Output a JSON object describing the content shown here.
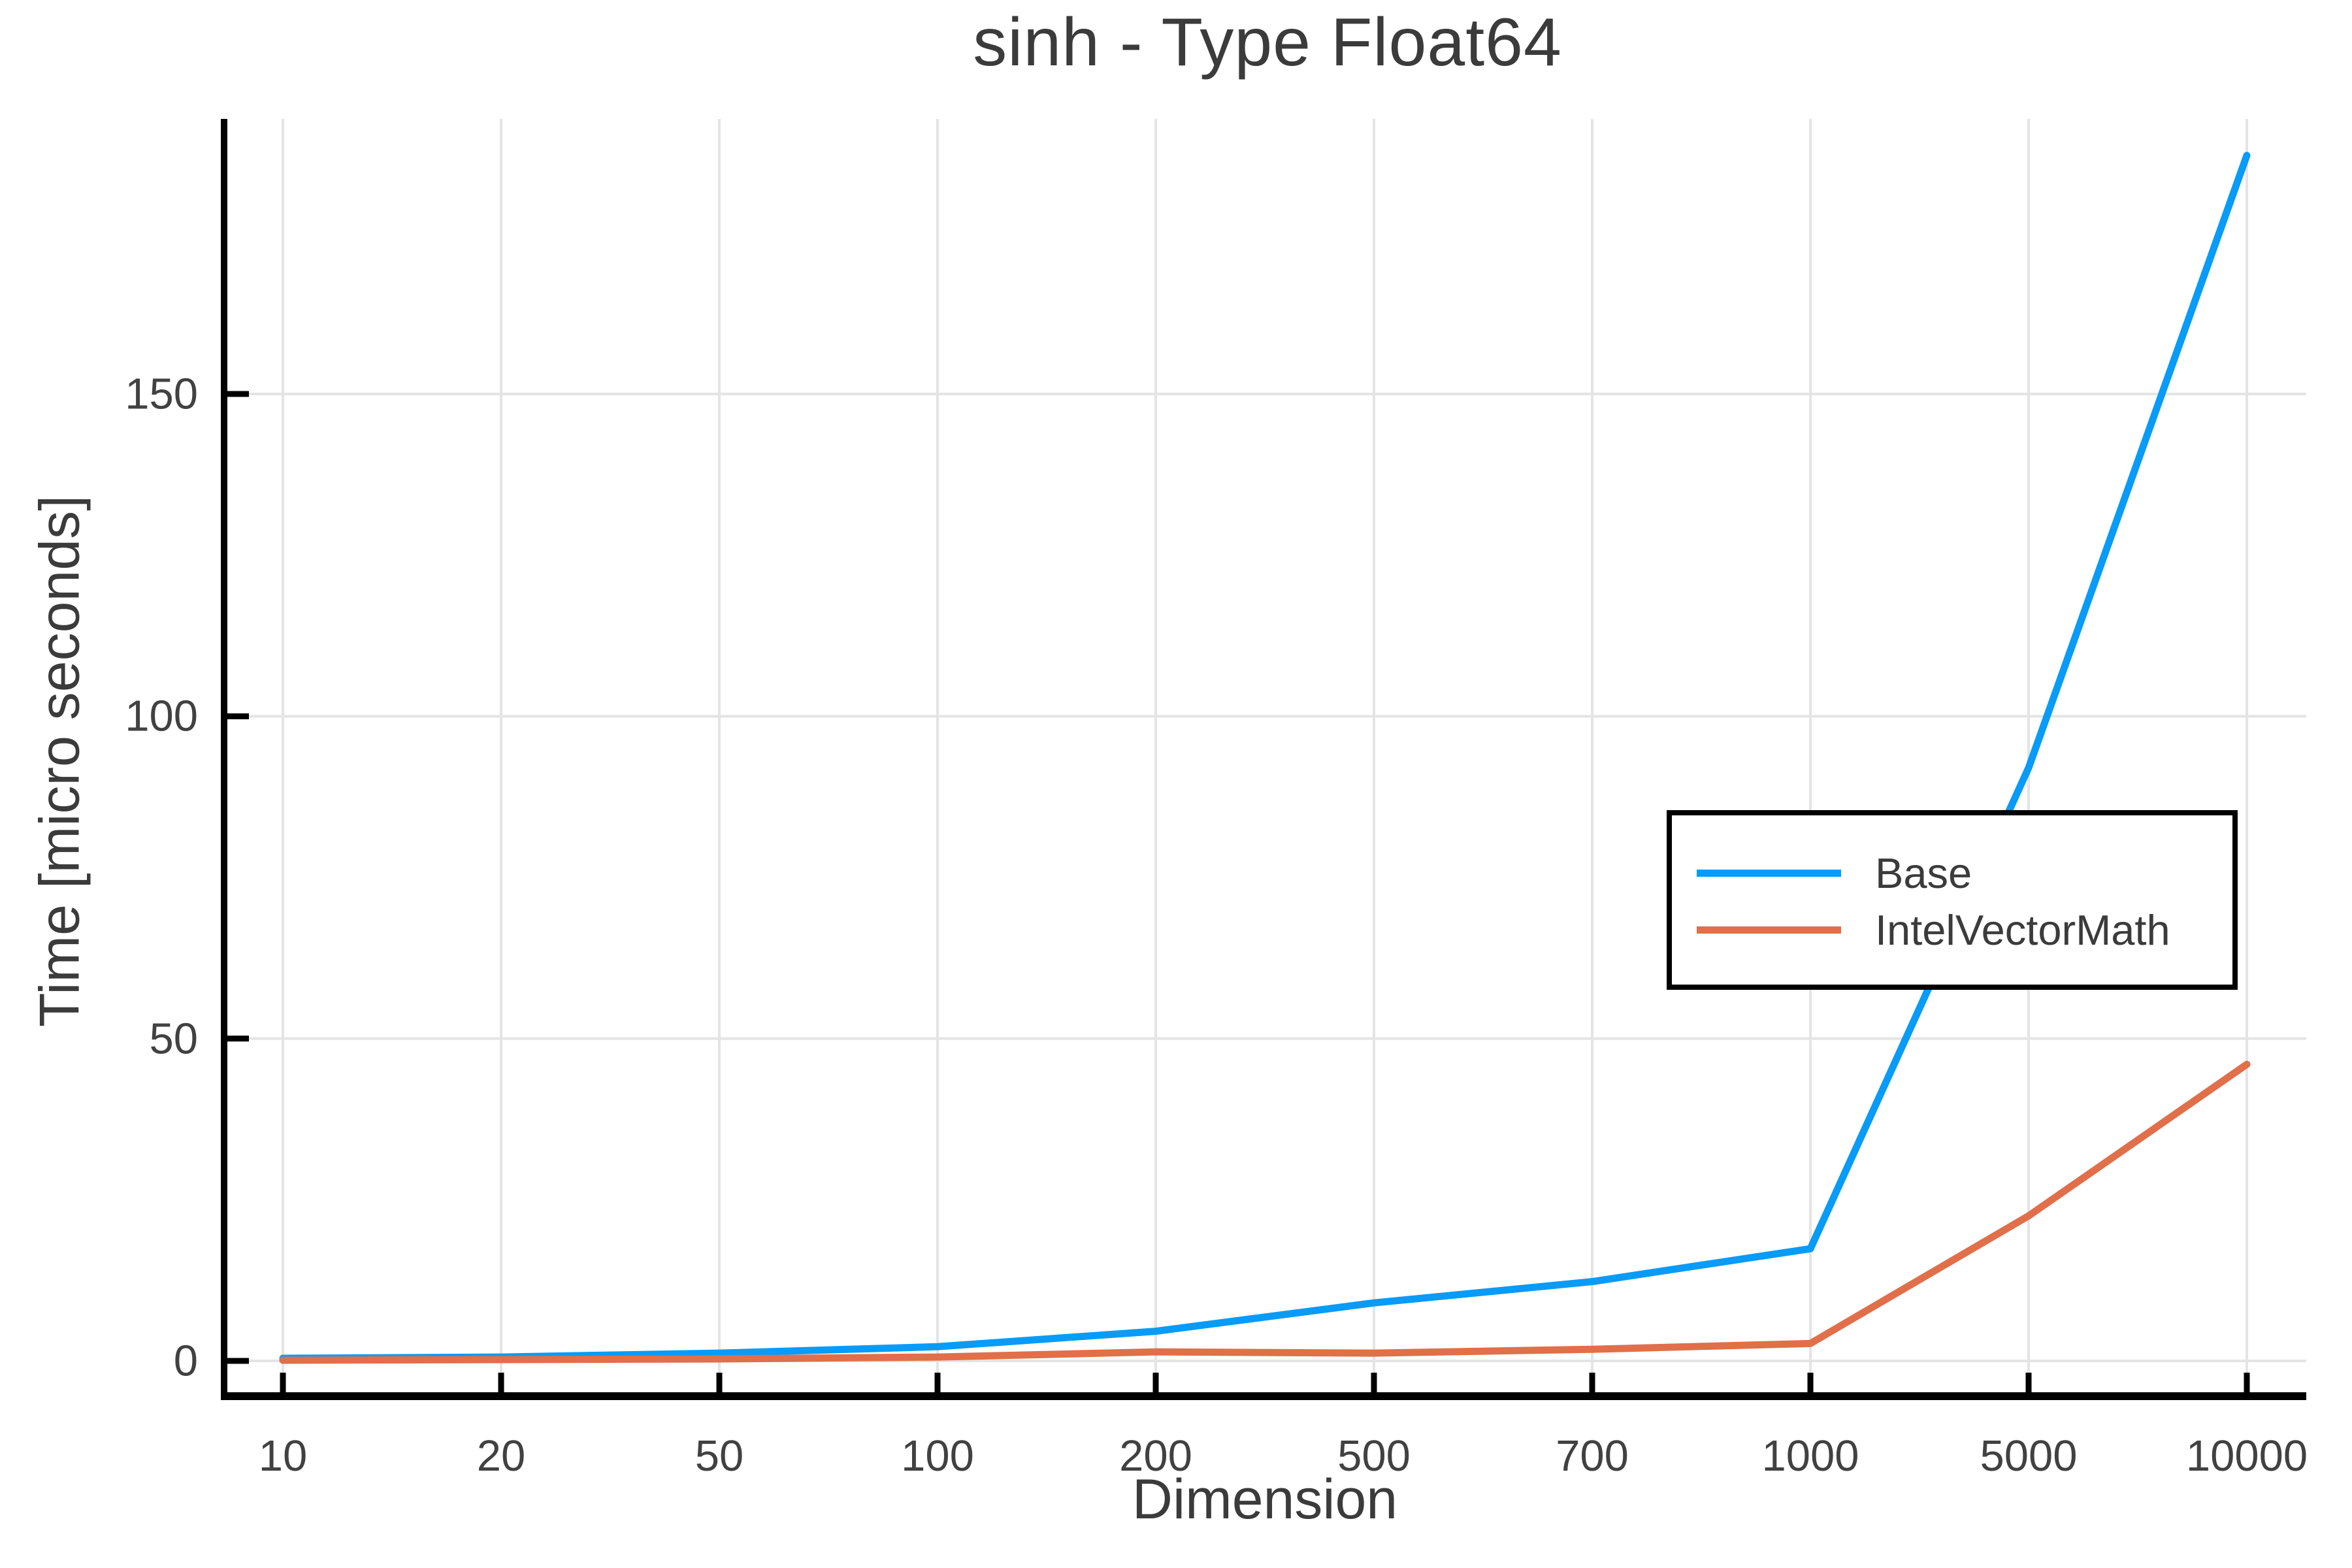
{
  "chart_data": {
    "type": "line",
    "title": "sinh - Type Float64",
    "xlabel": "Dimension",
    "ylabel": "Time [micro seconds]",
    "categories": [
      "10",
      "20",
      "50",
      "100",
      "200",
      "500",
      "700",
      "1000",
      "5000",
      "10000"
    ],
    "series": [
      {
        "name": "Base",
        "color": "#089BF7",
        "values": [
          0.4,
          0.6,
          1.2,
          2.2,
          4.6,
          9.0,
          12.3,
          17.4,
          92.0,
          187.0
        ]
      },
      {
        "name": "IntelVectorMath",
        "color": "#E06F4A",
        "values": [
          0.1,
          0.2,
          0.3,
          0.6,
          1.4,
          1.2,
          1.8,
          2.7,
          22.5,
          46.0
        ]
      }
    ],
    "yticks": [
      0,
      50,
      100,
      150
    ],
    "ylim": [
      0,
      193
    ],
    "x_axis_style": "categorical-even-spacing",
    "grid": true,
    "gridline_color": "#E4E4E4",
    "axis_color": "#000000",
    "text_color": "#3b3b3b",
    "legend_position": "center-right",
    "legend_border_color": "#000000",
    "legend_background": "#ffffff"
  }
}
